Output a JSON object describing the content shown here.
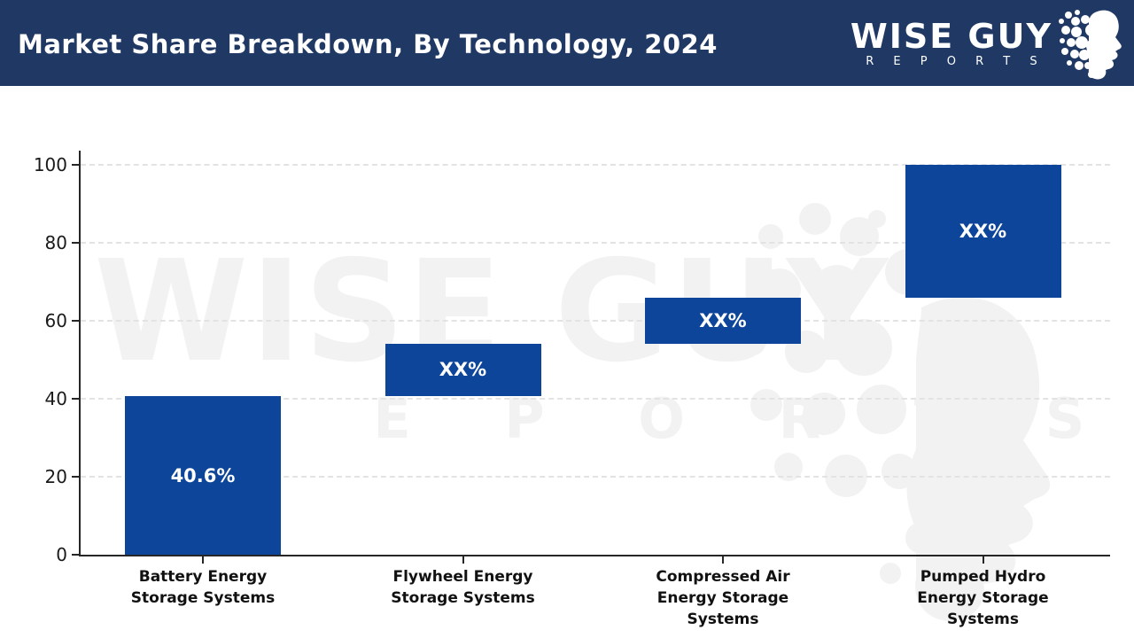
{
  "header": {
    "title": "Market Share Breakdown, By Technology, 2024",
    "logo": {
      "line1": "WISE GUY",
      "line2": "R E P O R T S",
      "icon": "dotted-face-profile"
    }
  },
  "watermark": {
    "line1": "WISE GUY",
    "line2": "R E P O R T S"
  },
  "colors": {
    "header_bg": "#1F3864",
    "bar": "#0C4599",
    "axis": "#262626",
    "gridline": "#e3e3e3",
    "watermark": "#f2f2f2",
    "title_text": "#ffffff"
  },
  "chart_data": {
    "type": "bar",
    "subtype": "waterfall",
    "title": "Market Share Breakdown, By Technology, 2024",
    "xlabel": "",
    "ylabel": "",
    "ylim": [
      0,
      105
    ],
    "y_ticks": [
      0,
      20,
      40,
      60,
      80,
      100
    ],
    "grid": "horizontal-dashed",
    "legend": "none",
    "categories": [
      "Battery Energy\nStorage Systems",
      "Flywheel Energy\nStorage Systems",
      "Compressed Air\nEnergy Storage\nSystems",
      "Pumped Hydro\nEnergy Storage\nSystems"
    ],
    "bars": [
      {
        "category": "Battery Energy Storage Systems",
        "label": "40.6%",
        "start": 0,
        "end": 40.6
      },
      {
        "category": "Flywheel Energy Storage Systems",
        "label": "XX%",
        "start": 40.6,
        "end": 54.2
      },
      {
        "category": "Compressed Air Energy Storage Systems",
        "label": "XX%",
        "start": 54.2,
        "end": 66.0
      },
      {
        "category": "Pumped Hydro Energy Storage Systems",
        "label": "XX%",
        "start": 66.0,
        "end": 100
      }
    ]
  }
}
